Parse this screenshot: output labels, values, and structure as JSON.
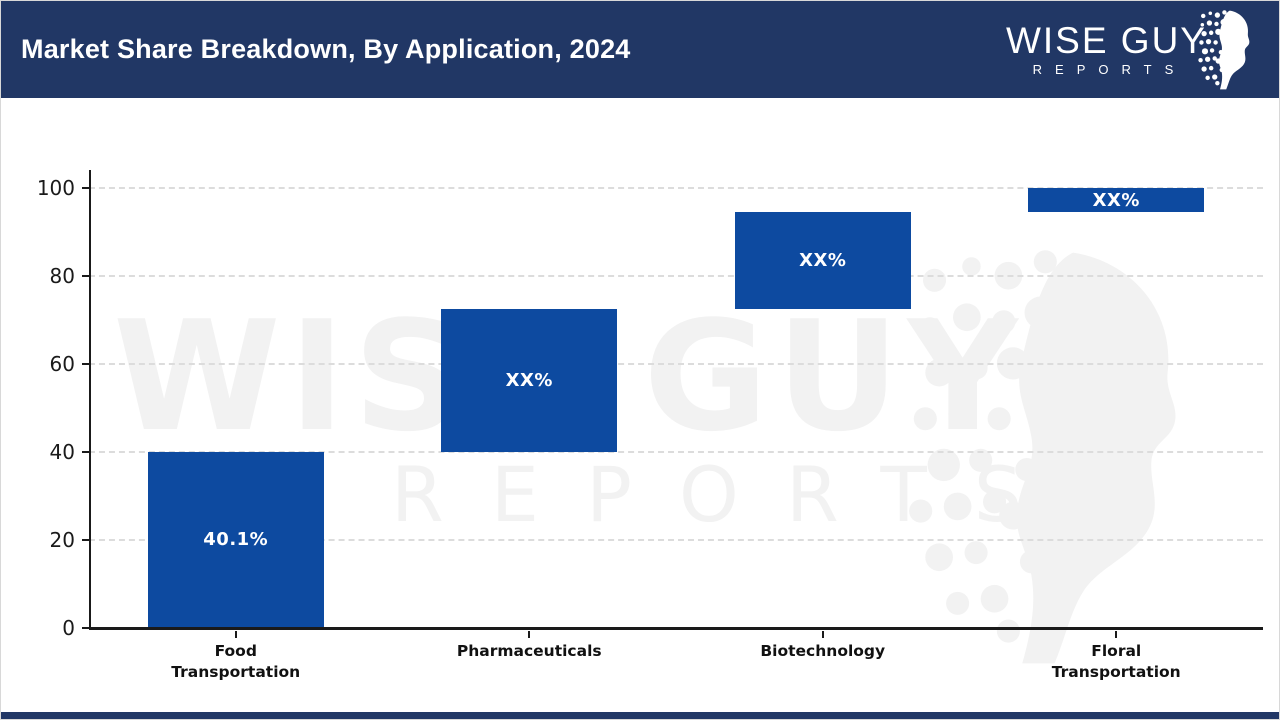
{
  "header": {
    "title": "Market Share Breakdown, By Application, 2024",
    "logo": {
      "line1": "WISE GUY",
      "line2": "REPORTS"
    }
  },
  "watermark": {
    "line1": "WISE GUY",
    "line2": "REPORTS"
  },
  "colors": {
    "header_bg": "#213765",
    "bar": "#0d4aa0",
    "grid": "#dcdcdc",
    "axis": "#1a1a1a",
    "bar_label": "#ffffff",
    "watermark": "#f2f2f2"
  },
  "chart_data": {
    "type": "bar",
    "subtype": "waterfall",
    "title": "Market Share Breakdown, By Application, 2024",
    "categories": [
      "Food\nTransportation",
      "Pharmaceuticals",
      "Biotechnology",
      "Floral\nTransportation"
    ],
    "segments": [
      {
        "category": "Food Transportation",
        "start": 0,
        "end": 40.1,
        "label": "40.1%"
      },
      {
        "category": "Pharmaceuticals",
        "start": 40.1,
        "end": 72.6,
        "label": "XX%"
      },
      {
        "category": "Biotechnology",
        "start": 72.6,
        "end": 94.5,
        "label": "XX%"
      },
      {
        "category": "Floral Transportation",
        "start": 94.5,
        "end": 100,
        "label": "XX%"
      }
    ],
    "yticks": [
      0,
      20,
      40,
      60,
      80,
      100
    ],
    "ylim": [
      0,
      100
    ],
    "xlabel": "",
    "ylabel": "",
    "grid": "horizontal-dashed",
    "legend": null
  }
}
